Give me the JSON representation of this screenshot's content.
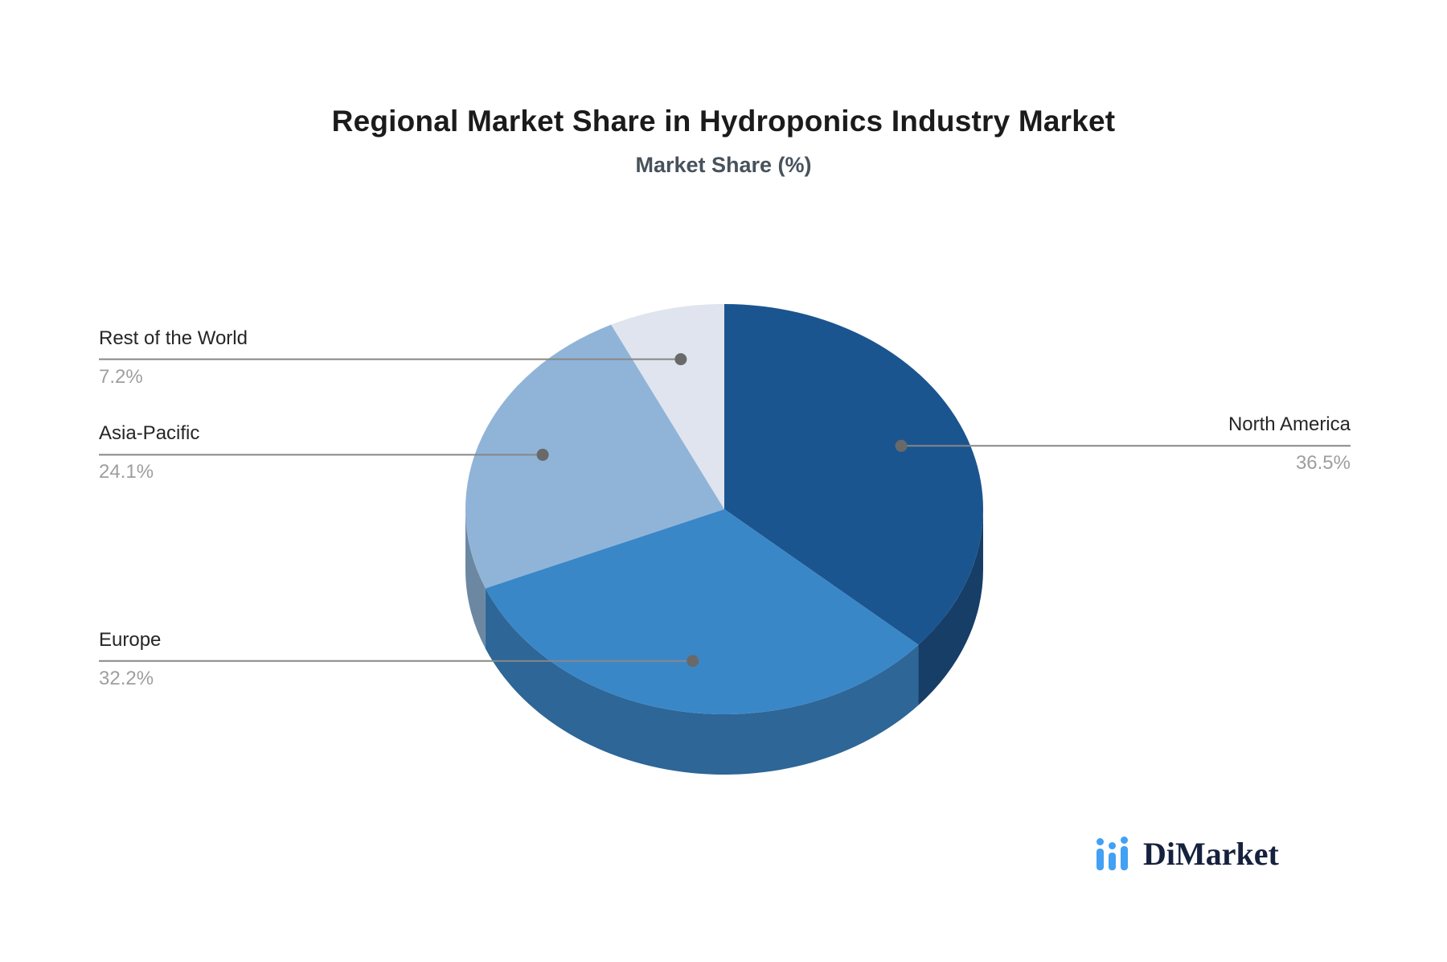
{
  "title": "Regional Market Share in Hydroponics Industry Market",
  "subtitle": "Market Share (%)",
  "chart_data": {
    "type": "pie",
    "style": "3d",
    "title": "Regional Market Share in Hydroponics Industry Market",
    "subtitle": "Market Share (%)",
    "unit": "%",
    "start_angle_deg": 0,
    "direction": "clockwise",
    "legend_position": "none",
    "slices": [
      {
        "label": "North America",
        "value": 36.5,
        "display": "36.5%",
        "color": "#1b5590",
        "side_color": "#173e66",
        "label_side": "right"
      },
      {
        "label": "Europe",
        "value": 32.2,
        "display": "32.2%",
        "color": "#3a87c8",
        "side_color": "#2d6697",
        "label_side": "left"
      },
      {
        "label": "Asia-Pacific",
        "value": 24.1,
        "display": "24.1%",
        "color": "#90b4d8",
        "side_color": "#6c87a2",
        "label_side": "left"
      },
      {
        "label": "Rest of the World",
        "value": 7.2,
        "display": "7.2%",
        "color": "#dfe4ee",
        "side_color": "#a7b0bf",
        "label_side": "left"
      }
    ]
  },
  "logo": {
    "text": "DiMarket",
    "icon": "bar-chart-icon",
    "text_color": "#16213e",
    "icon_color": "#42a0f5"
  },
  "colors": {
    "background": "#ffffff",
    "title_text": "#1b1b1b",
    "subtitle_text": "#47525c",
    "label_text": "#262626",
    "pct_text": "#9e9e9e",
    "leader_line": "#878787",
    "leader_dot": "#696969"
  }
}
